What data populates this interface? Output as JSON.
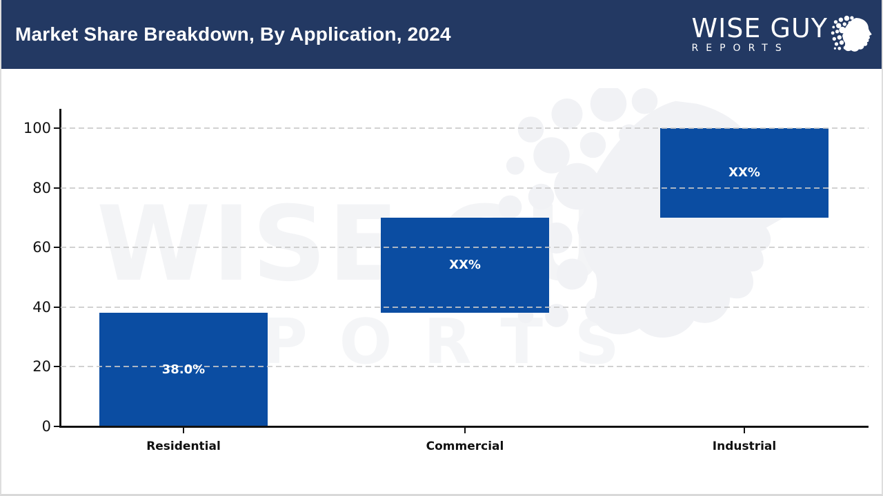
{
  "header": {
    "title": "Market Share Breakdown, By Application, 2024",
    "logo": {
      "wordmark": "WISE GUY",
      "subtext": "REPORTS",
      "face_icon": "dotted-face-profile-icon"
    }
  },
  "watermark": {
    "wordmark": "WISE GUY",
    "subtext": "REPORTS",
    "face_icon": "dotted-face-profile-icon"
  },
  "colors": {
    "header_background": "#233963",
    "bar_fill": "#0b4da2",
    "bar_label_text": "#ffffff",
    "axis_text": "#111111",
    "gridline": "#c9c9c9",
    "watermark": "#f3f4f6",
    "frame_border": "#d9d9d9"
  },
  "chart_data": {
    "type": "bar",
    "subtype": "waterfall-stacked",
    "title": "Market Share Breakdown, By Application, 2024",
    "categories": [
      "Residential",
      "Commercial",
      "Industrial"
    ],
    "segments": [
      {
        "category": "Residential",
        "start": 0,
        "end": 38,
        "label": "38.0%"
      },
      {
        "category": "Commercial",
        "start": 38,
        "end": 70,
        "label": "XX%"
      },
      {
        "category": "Industrial",
        "start": 70,
        "end": 100,
        "label": "XX%"
      }
    ],
    "xlabel": "",
    "ylabel": "",
    "ylim": [
      0,
      100
    ],
    "yticks": [
      0,
      20,
      40,
      60,
      80,
      100
    ],
    "grid": "horizontal-dashed",
    "gridlines_above_bars": true,
    "legend": "none"
  }
}
